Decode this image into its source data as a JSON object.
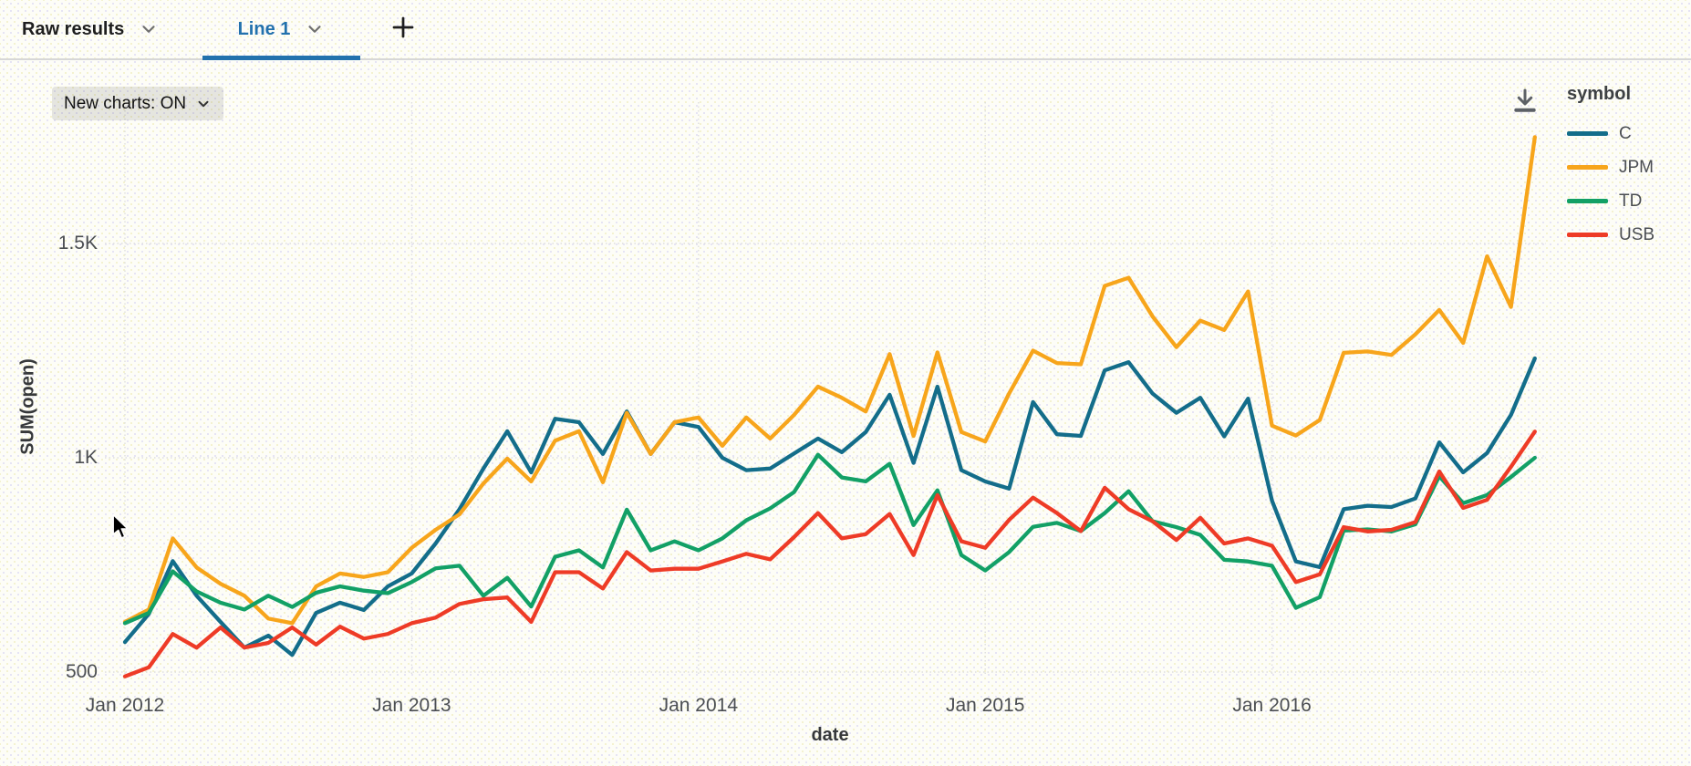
{
  "tabs": {
    "items": [
      {
        "label": "Raw results",
        "active": false
      },
      {
        "label": "Line 1",
        "active": true
      }
    ],
    "active_color": "#2271ad"
  },
  "toolbar": {
    "new_charts_label": "New charts: ON",
    "download_icon": "download-icon"
  },
  "legend": {
    "title": "symbol",
    "items": [
      {
        "label": "C",
        "color": "#136d8a"
      },
      {
        "label": "JPM",
        "color": "#f7a51b"
      },
      {
        "label": "TD",
        "color": "#12a066"
      },
      {
        "label": "USB",
        "color": "#ee3b26"
      }
    ]
  },
  "chart_data": {
    "type": "line",
    "xlabel": "date",
    "ylabel": "SUM(open)",
    "legend_title": "symbol",
    "legend_position": "right",
    "grid": true,
    "ylim": [
      460,
      1790
    ],
    "y_ticks": [
      {
        "label": "500",
        "value": 500
      },
      {
        "label": "1K",
        "value": 1000
      },
      {
        "label": "1.5K",
        "value": 1500
      }
    ],
    "x_ticks": [
      {
        "label": "Jan 2012",
        "month_index": 0
      },
      {
        "label": "Jan 2013",
        "month_index": 12
      },
      {
        "label": "Jan 2014",
        "month_index": 24
      },
      {
        "label": "Jan 2015",
        "month_index": 36
      },
      {
        "label": "Jan 2016",
        "month_index": 48
      }
    ],
    "x": [
      "2012-01",
      "2012-02",
      "2012-03",
      "2012-04",
      "2012-05",
      "2012-06",
      "2012-07",
      "2012-08",
      "2012-09",
      "2012-10",
      "2012-11",
      "2012-12",
      "2013-01",
      "2013-02",
      "2013-03",
      "2013-04",
      "2013-05",
      "2013-06",
      "2013-07",
      "2013-08",
      "2013-09",
      "2013-10",
      "2013-11",
      "2013-12",
      "2014-01",
      "2014-02",
      "2014-03",
      "2014-04",
      "2014-05",
      "2014-06",
      "2014-07",
      "2014-08",
      "2014-09",
      "2014-10",
      "2014-11",
      "2014-12",
      "2015-01",
      "2015-02",
      "2015-03",
      "2015-04",
      "2015-05",
      "2015-06",
      "2015-07",
      "2015-08",
      "2015-09",
      "2015-10",
      "2015-11",
      "2015-12",
      "2016-01",
      "2016-02",
      "2016-03",
      "2016-04",
      "2016-05",
      "2016-06",
      "2016-07",
      "2016-08",
      "2016-09",
      "2016-10",
      "2016-11",
      "2016-12"
    ],
    "series": [
      {
        "name": "C",
        "color": "#136d8a",
        "values": [
          570,
          636,
          759,
          678,
          617,
          557,
          585,
          540,
          638,
          662,
          645,
          700,
          730,
          800,
          880,
          975,
          1062,
          966,
          1091,
          1083,
          1009,
          1108,
          1009,
          1083,
          1072,
          1000,
          971,
          975,
          1010,
          1045,
          1013,
          1060,
          1147,
          988,
          1166,
          971,
          945,
          928,
          1130,
          1055,
          1051,
          1204,
          1223,
          1150,
          1105,
          1140,
          1050,
          1138,
          900,
          758,
          745,
          880,
          888,
          885,
          905,
          1036,
          966,
          1011,
          1100,
          1232
        ]
      },
      {
        "name": "JPM",
        "color": "#f7a51b",
        "values": [
          617,
          646,
          812,
          744,
          706,
          678,
          625,
          614,
          700,
          730,
          722,
          733,
          790,
          832,
          868,
          940,
          998,
          945,
          1040,
          1062,
          943,
          1105,
          1009,
          1083,
          1094,
          1028,
          1094,
          1045,
          1100,
          1166,
          1140,
          1108,
          1242,
          1051,
          1246,
          1060,
          1038,
          1150,
          1250,
          1221,
          1218,
          1401,
          1420,
          1330,
          1258,
          1320,
          1298,
          1388,
          1075,
          1052,
          1088,
          1245,
          1248,
          1240,
          1288,
          1345,
          1268,
          1470,
          1352,
          1748
        ]
      },
      {
        "name": "TD",
        "color": "#12a066",
        "values": [
          614,
          638,
          735,
          688,
          662,
          646,
          678,
          652,
          685,
          700,
          690,
          684,
          710,
          742,
          748,
          678,
          720,
          653,
          769,
          784,
          744,
          879,
          784,
          805,
          784,
          812,
          854,
          882,
          920,
          1007,
          954,
          945,
          986,
          843,
          924,
          773,
          737,
          780,
          839,
          848,
          829,
          871,
          922,
          852,
          838,
          820,
          762,
          758,
          748,
          650,
          675,
          830,
          833,
          828,
          845,
          957,
          894,
          913,
          955,
          1000
        ]
      },
      {
        "name": "USB",
        "color": "#ee3b26",
        "values": [
          490,
          511,
          589,
          557,
          604,
          557,
          568,
          604,
          564,
          606,
          578,
          589,
          614,
          627,
          659,
          670,
          674,
          617,
          733,
          733,
          695,
          780,
          737,
          741,
          741,
          758,
          776,
          763,
          815,
          871,
          812,
          822,
          869,
          773,
          913,
          805,
          790,
          855,
          907,
          871,
          829,
          930,
          880,
          852,
          808,
          860,
          800,
          812,
          795,
          710,
          728,
          838,
          828,
          832,
          850,
          968,
          883,
          902,
          979,
          1061
        ]
      }
    ]
  }
}
